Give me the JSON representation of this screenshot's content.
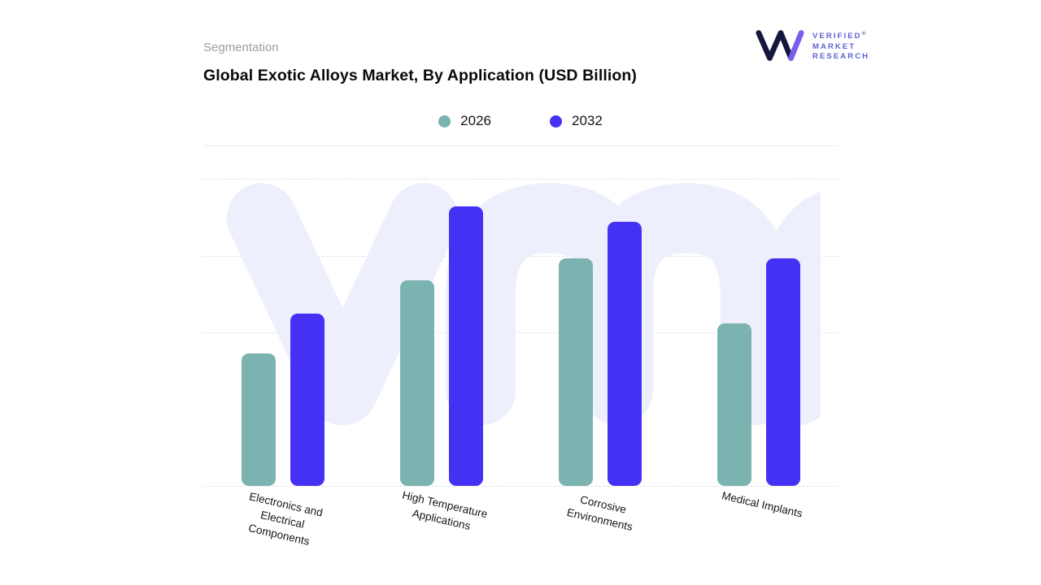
{
  "header": {
    "eyebrow": "Segmentation",
    "title": "Global Exotic Alloys Market, By Application (USD Billion)"
  },
  "logo": {
    "name": "VMR",
    "line1": "VERIFIED",
    "line2": "MARKET",
    "line3": "RESEARCH",
    "registered": "®",
    "mark_color": "#16163f",
    "accent_color": "#7a5cf0",
    "text_color": "#5d60d2"
  },
  "chart_data": {
    "type": "bar",
    "title": "Global Exotic Alloys Market, By Application (USD Billion)",
    "categories": [
      "Electronics and Electrical Components",
      "High Temperature Applications",
      "Corrosive Environments",
      "Medical Implants"
    ],
    "categories_lines": [
      [
        "Electronics and",
        "Electrical",
        "Components"
      ],
      [
        "High Temperature",
        "Applications"
      ],
      [
        "Corrosive",
        "Environments"
      ],
      [
        "Medical Implants"
      ]
    ],
    "series": [
      {
        "name": "2026",
        "color": "#7bb3b0",
        "values": [
          43,
          67,
          74,
          53
        ]
      },
      {
        "name": "2032",
        "color": "#4431f4",
        "values": [
          56,
          91,
          86,
          74
        ]
      }
    ],
    "ylim": [
      0,
      100
    ],
    "xlabel": "",
    "ylabel": "",
    "grid": "horizontal-dashed",
    "legend_position": "top-center",
    "watermark": "vmr",
    "watermark_color": "#edeffc"
  }
}
